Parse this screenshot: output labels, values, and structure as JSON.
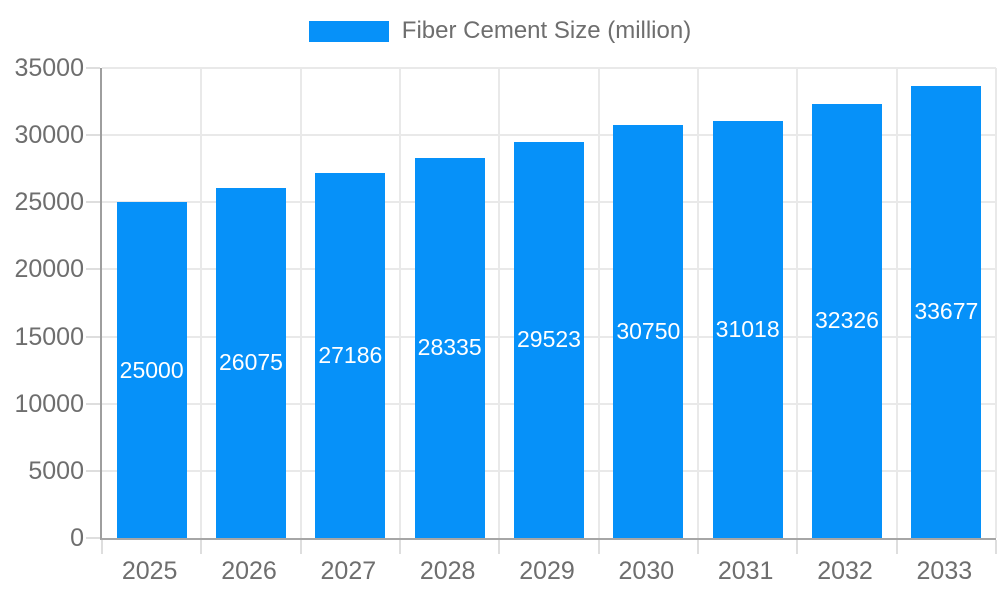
{
  "legend": {
    "label": "Fiber Cement Size (million)"
  },
  "colors": {
    "bar": "#0691f9",
    "bar_label": "#ffffff",
    "grid": "#e9e9e9",
    "axis_line": "#9e9e9e",
    "tick_text": "#6e6e6e"
  },
  "chart_data": {
    "type": "bar",
    "title": "",
    "legend_entries": [
      "Fiber Cement Size (million)"
    ],
    "legend_position": "top",
    "categories": [
      "2025",
      "2026",
      "2027",
      "2028",
      "2029",
      "2030",
      "2031",
      "2032",
      "2033"
    ],
    "values": [
      25000,
      26075,
      27186,
      28335,
      29523,
      30750,
      31018,
      32326,
      33677
    ],
    "bar_labels": [
      "25000",
      "26075",
      "27186",
      "28335",
      "29523",
      "30750",
      "31018",
      "32326",
      "33677"
    ],
    "xlabel": "",
    "ylabel": "",
    "ylim": [
      0,
      35000
    ],
    "ytick_step": 5000,
    "yticks": [
      0,
      5000,
      10000,
      15000,
      20000,
      25000,
      30000,
      35000
    ],
    "grid": true
  }
}
